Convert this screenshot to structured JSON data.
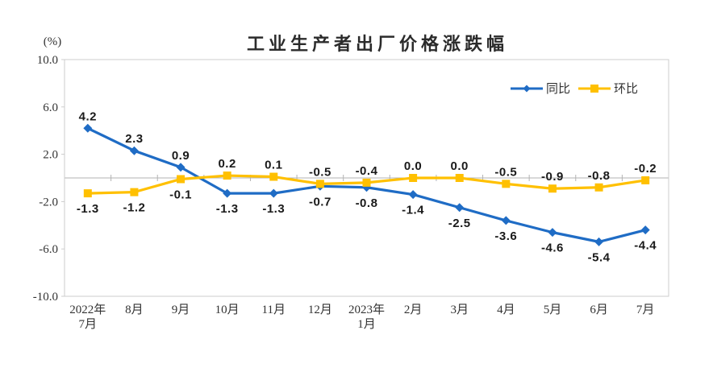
{
  "chart": {
    "chart_data": {
      "type": "line",
      "title": "工业生产者出厂价格涨跌幅",
      "unit_label": "(%)",
      "categories": [
        "2022年\n7月",
        "8月",
        "9月",
        "10月",
        "11月",
        "12月",
        "2023年\n1月",
        "2月",
        "3月",
        "4月",
        "5月",
        "6月",
        "7月"
      ],
      "series": [
        {
          "name": "同比",
          "color": "#1f6cc5",
          "marker": "diamond",
          "values": [
            4.2,
            2.3,
            0.9,
            -1.3,
            -1.3,
            -0.7,
            -0.8,
            -1.4,
            -2.5,
            -3.6,
            -4.6,
            -5.4,
            -4.4
          ],
          "label_positions": [
            "above",
            "above",
            "above",
            "below",
            "below",
            "below",
            "below",
            "below",
            "below",
            "below",
            "below",
            "below",
            "below"
          ]
        },
        {
          "name": "环比",
          "color": "#ffc000",
          "marker": "square",
          "values": [
            -1.3,
            -1.2,
            -0.1,
            0.2,
            0.1,
            -0.5,
            -0.4,
            0.0,
            0.0,
            -0.5,
            -0.9,
            -0.8,
            -0.2
          ],
          "label_positions": [
            "below",
            "below",
            "below",
            "above",
            "above",
            "above",
            "above",
            "above",
            "above",
            "above",
            "above",
            "above",
            "above"
          ]
        }
      ],
      "ylim": [
        -10,
        10
      ],
      "yticks": [
        10.0,
        6.0,
        2.0,
        -2.0,
        -6.0,
        -10.0
      ],
      "ytick_format": "one-decimal",
      "xlabel": "",
      "ylabel": "",
      "grid": "zero-baseline-only",
      "legend_position": "top-right-inside",
      "axis_color": "#cccccc",
      "zero_line_color": "#b3b3b3",
      "data_label_color": "#1a1a1a",
      "tick_label_color": "#333333"
    }
  }
}
